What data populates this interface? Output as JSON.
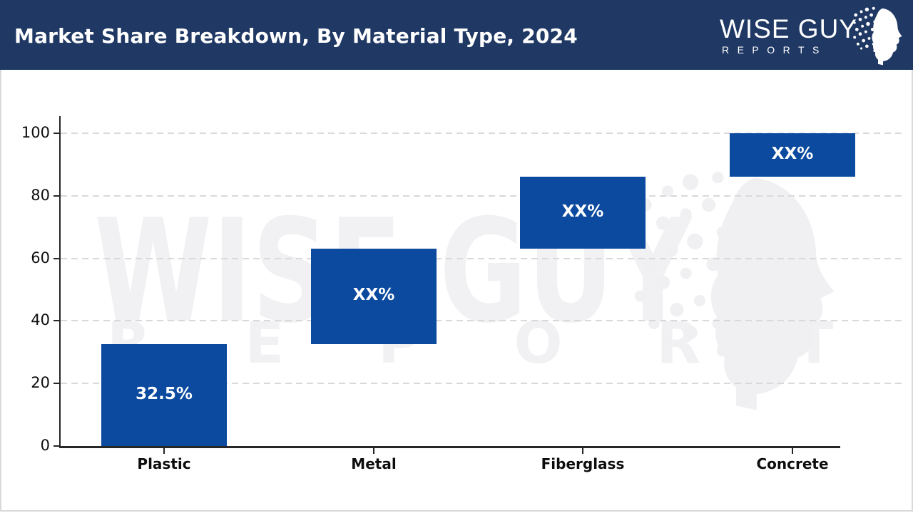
{
  "header": {
    "title": "Market Share Breakdown, By Material Type, 2024",
    "bg_color": "#1f3864",
    "logo": {
      "primary": "WISE GUY",
      "secondary": "REPORTS"
    }
  },
  "watermark": {
    "primary": "WISE GUY",
    "secondary": "R E P O R T S"
  },
  "chart_data": {
    "type": "bar",
    "variant": "waterfall",
    "title": "Market Share Breakdown, By Material Type, 2024",
    "categories": [
      "Plastic",
      "Metal",
      "Fiberglass",
      "Concrete"
    ],
    "segments": [
      {
        "category": "Plastic",
        "start": 0,
        "end": 32.5,
        "label": "32.5%"
      },
      {
        "category": "Metal",
        "start": 32.5,
        "end": 63,
        "label": "XX%"
      },
      {
        "category": "Fiberglass",
        "start": 63,
        "end": 86,
        "label": "XX%"
      },
      {
        "category": "Concrete",
        "start": 86,
        "end": 100,
        "label": "XX%"
      }
    ],
    "yticks": [
      0,
      20,
      40,
      60,
      80,
      100
    ],
    "ylim": [
      0,
      105.5
    ],
    "xlabel": "",
    "ylabel": "",
    "legend": null,
    "grid": "horizontal-dashed",
    "bar_color": "#0b4a9e",
    "bar_label_color": "#ffffff",
    "axis_color": "#262626",
    "gridline_color": "#d9d9d9"
  }
}
